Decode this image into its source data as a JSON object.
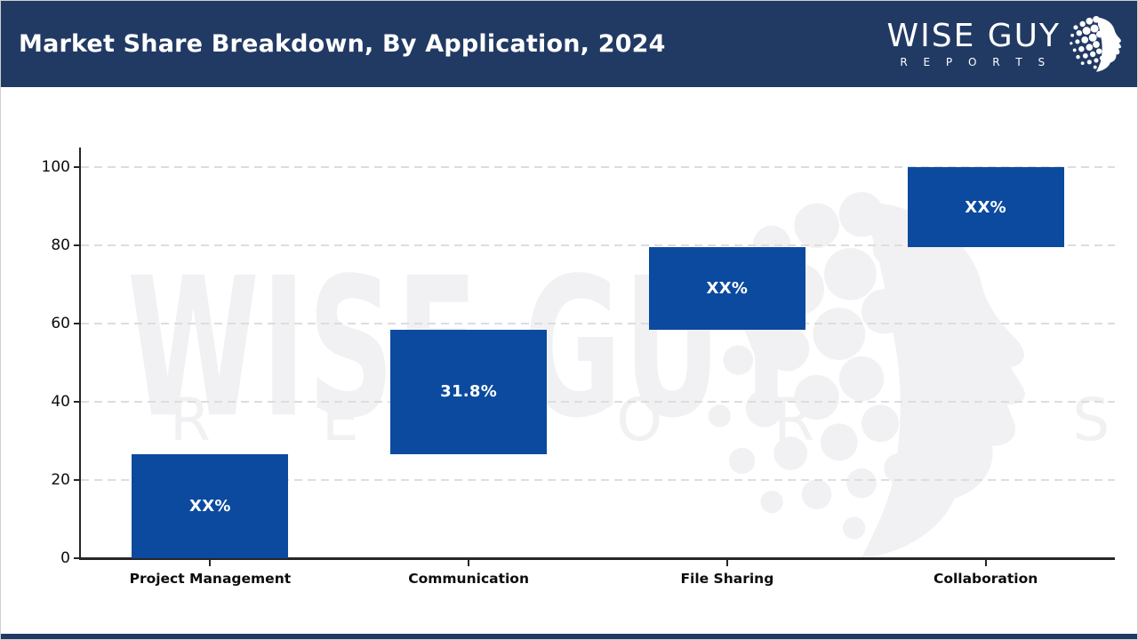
{
  "header": {
    "title": "Market Share Breakdown, By Application, 2024",
    "logo": {
      "line1": "WISE GUY",
      "line2": "R E P O R T S"
    }
  },
  "watermark": {
    "line1": "WISE GUY",
    "line2": "R E P O R T S"
  },
  "footer": {
    "accent_bar": true
  },
  "colors": {
    "header_bg": "#213a64",
    "bar_fill": "#0b4a9e",
    "bar_label_text": "#ffffff",
    "gridline": "#dddddd",
    "axis": "#262626",
    "watermark": "#f1f1f4"
  },
  "chart_data": {
    "type": "bar",
    "subtype": "waterfall",
    "title": "Market Share Breakdown, By Application, 2024",
    "categories": [
      "Project Management",
      "Communication",
      "File Sharing",
      "Collaboration"
    ],
    "segments": [
      {
        "category": "Project Management",
        "start": 0,
        "end": 26.6,
        "value_pct": 26.6,
        "label": "XX%"
      },
      {
        "category": "Communication",
        "start": 26.6,
        "end": 58.4,
        "value_pct": 31.8,
        "label": "31.8%"
      },
      {
        "category": "File Sharing",
        "start": 58.4,
        "end": 79.5,
        "value_pct": 21.1,
        "label": "XX%"
      },
      {
        "category": "Collaboration",
        "start": 79.5,
        "end": 100,
        "value_pct": 20.5,
        "label": "XX%"
      }
    ],
    "xlabel": "",
    "ylabel": "",
    "ylim": [
      0,
      100
    ],
    "yticks": [
      0,
      20,
      40,
      60,
      80,
      100
    ],
    "grid": "horizontal-dashed",
    "legend": false
  }
}
